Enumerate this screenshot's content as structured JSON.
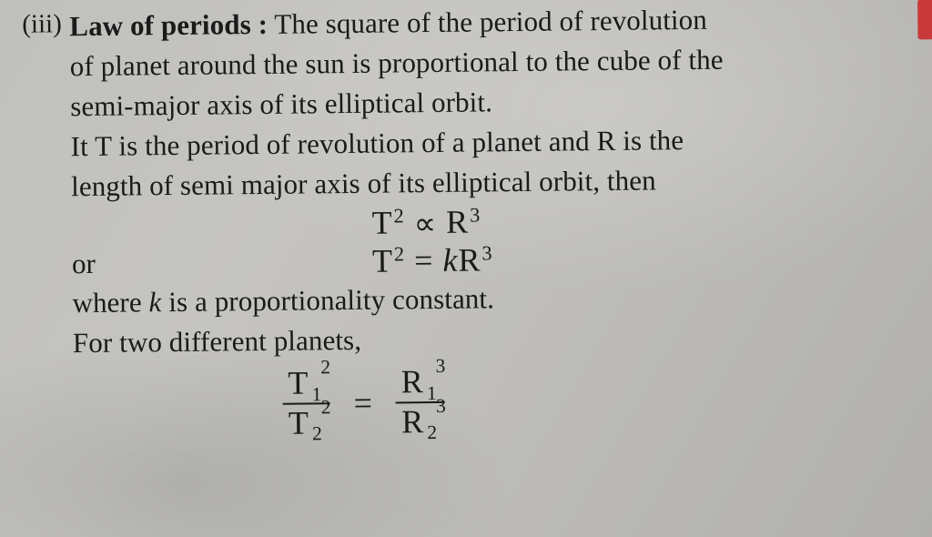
{
  "colors": {
    "text": "#1a1a1a",
    "page_bg_light": "#c5c4c0",
    "page_bg_dark": "#b0afab",
    "red_marker": "#c83a3a"
  },
  "bullet": "(iii)",
  "heading": "Law of periods :",
  "p1_l1_rest": " The square of the period of revolution",
  "p1_l2": "of planet around the sun is proportional to the cube of the",
  "p1_l3": "semi-major axis of its elliptical orbit.",
  "p2_l1": "It T is the period of revolution of a planet and R is the",
  "p2_l2": "length of semi major axis of its elliptical orbit, then",
  "eq1": {
    "T": "T",
    "T_exp": "2",
    "prop": "∝",
    "R": "R",
    "R_exp": "3"
  },
  "or_label": "or",
  "eq2": {
    "T": "T",
    "T_exp": "2",
    "eq": "=",
    "k": "k",
    "R": "R",
    "R_exp": "3"
  },
  "p3": "where k is a proportionality constant.",
  "p4": "For two different planets,",
  "ratio": {
    "T": "T",
    "R": "R",
    "sub1": "1",
    "sub2": "2",
    "sup2": "2",
    "sup3": "3",
    "eq": "="
  }
}
